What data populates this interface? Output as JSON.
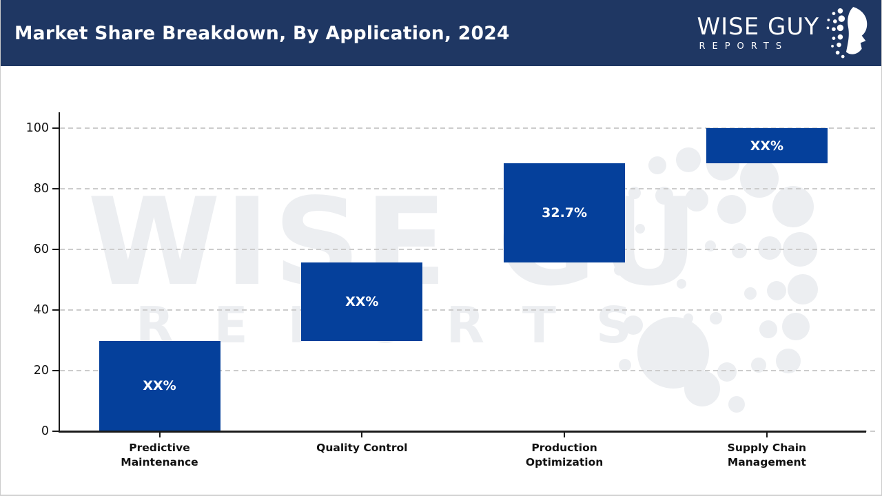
{
  "header": {
    "title": "Market Share Breakdown, By Application, 2024",
    "brand": {
      "line1": "WISE GUY",
      "line2": "REPORTS"
    }
  },
  "watermark": {
    "line1": "WISE GU",
    "line2": "REPORTS"
  },
  "chart_data": {
    "type": "bar",
    "subtype": "floating-waterfall-bars",
    "title": "Market Share Breakdown, By Application, 2024",
    "categories": [
      "Predictive\nMaintenance",
      "Quality Control",
      "Production\nOptimization",
      "Supply Chain\nManagement"
    ],
    "segments": [
      {
        "category": "Predictive Maintenance",
        "label": "XX%",
        "start": 0,
        "end": 29.8
      },
      {
        "category": "Quality Control",
        "label": "XX%",
        "start": 29.8,
        "end": 55.7
      },
      {
        "category": "Production Optimization",
        "label": "32.7%",
        "start": 55.7,
        "end": 88.4
      },
      {
        "category": "Supply Chain Management",
        "label": "XX%",
        "start": 88.4,
        "end": 100
      }
    ],
    "yticks": [
      0,
      20,
      40,
      60,
      80,
      100
    ],
    "ylim": [
      0,
      105
    ],
    "xlabel": "",
    "ylabel": "",
    "legend": null,
    "grid": "horizontal-dashed",
    "colors": {
      "bar": "#05409B",
      "grid": "#CCCCCC",
      "axis": "#1A1A1A",
      "tick_text": "#111111",
      "label_on_bar": "#FFFFFF",
      "header_bg": "#1F3763",
      "watermark": "#ECEEF1"
    }
  }
}
